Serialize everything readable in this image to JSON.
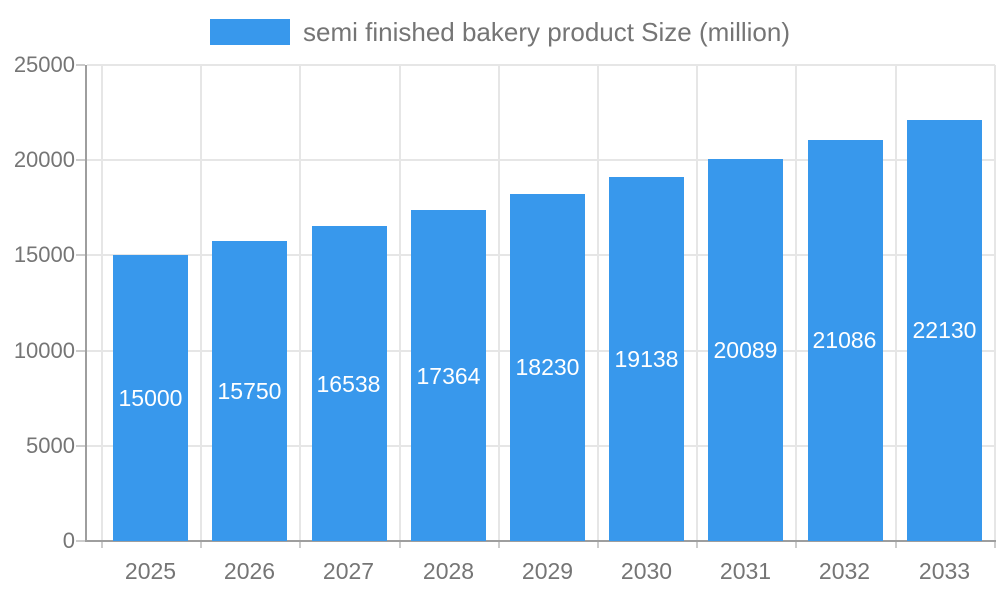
{
  "chart_data": {
    "type": "bar",
    "legend": "semi finished bakery product Size (million)",
    "series_name": "semi finished bakery product Size (million)",
    "categories": [
      "2025",
      "2026",
      "2027",
      "2028",
      "2029",
      "2030",
      "2031",
      "2032",
      "2033"
    ],
    "values": [
      15000,
      15750,
      16538,
      17364,
      18230,
      19138,
      20089,
      21086,
      22130
    ],
    "bar_labels": [
      "15000",
      "15750",
      "16538",
      "17364",
      "18230",
      "19138",
      "20089",
      "21086",
      "22130"
    ],
    "ylim": [
      0,
      25000
    ],
    "yticks": [
      0,
      5000,
      10000,
      15000,
      20000,
      25000
    ],
    "ytick_labels": [
      "0",
      "5000",
      "10000",
      "15000",
      "20000",
      "25000"
    ],
    "grid": true,
    "legend_position": "top",
    "xlabel": "",
    "ylabel": ""
  },
  "colors": {
    "bar": "#3898ec",
    "bar_label_text": "#ffffff",
    "axis_text": "#757575",
    "legend_text": "#757575",
    "gridline": "#e6e6e6",
    "axis_line": "#9e9e9e",
    "tick_mark": "#cccccc",
    "background": "#ffffff"
  }
}
